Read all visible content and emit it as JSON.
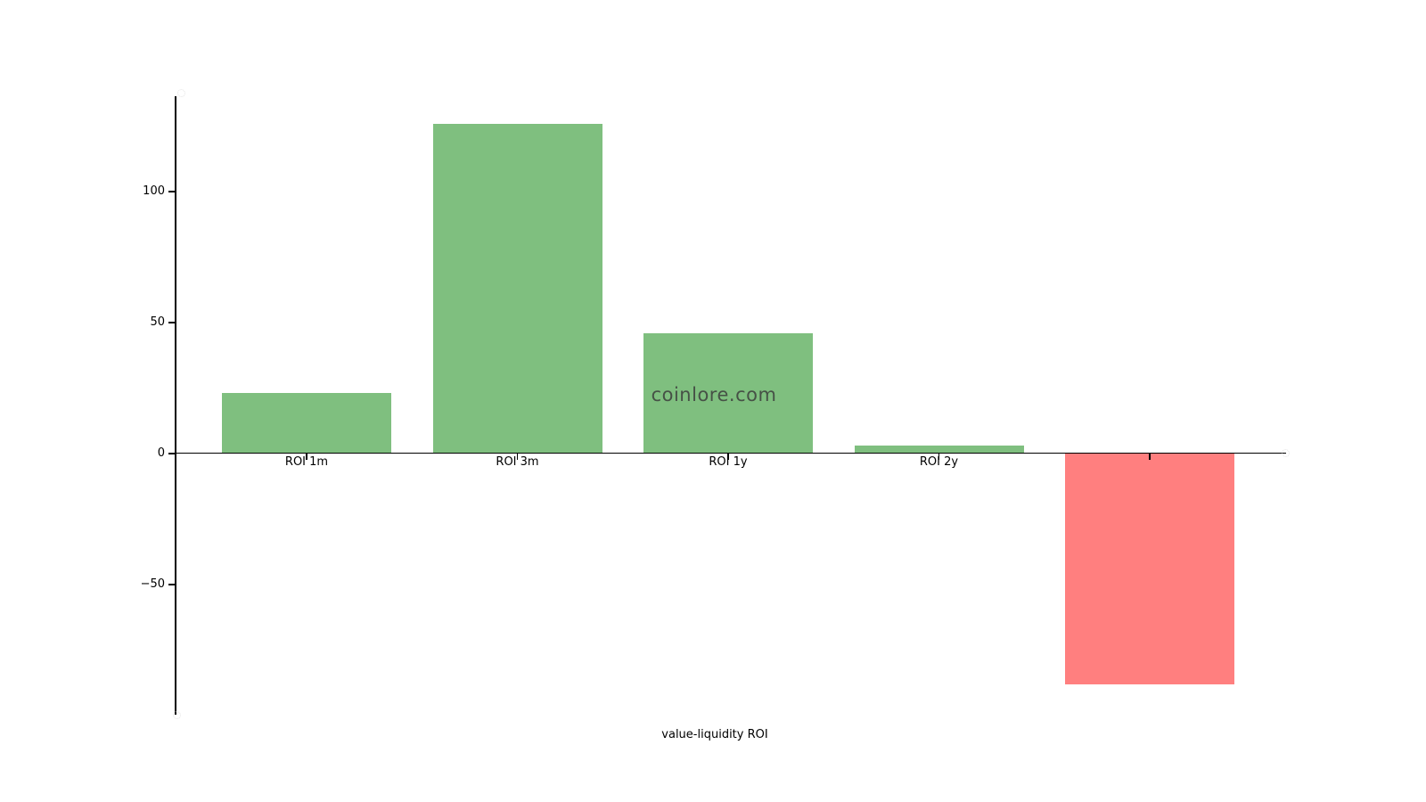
{
  "page": {
    "background": "#ffffff"
  },
  "watermark": {
    "text": "coinlore.com",
    "color": "#3a3a3a"
  },
  "chart_data": {
    "type": "bar",
    "title": "value-liquidity ROI",
    "categories": [
      "ROI 1m",
      "ROI 3m",
      "ROI 1y",
      "ROI 2y",
      ""
    ],
    "values": [
      23,
      126,
      46,
      3,
      -88
    ],
    "xlabel": "value-liquidity ROI",
    "ylabel": "",
    "ylim": [
      -99,
      136
    ],
    "yticks": [
      100,
      50,
      0,
      -50
    ],
    "grid": false,
    "legend": false,
    "bar_color_positive": "#7fbf7f",
    "bar_color_negative": "#ff7f7f",
    "axis_color": "#000000",
    "tick_label_color": "#000000"
  }
}
